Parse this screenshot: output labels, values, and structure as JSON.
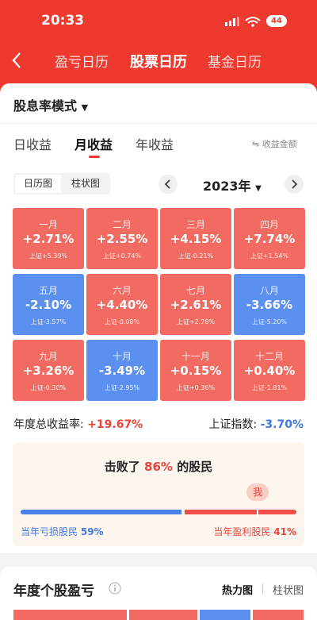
{
  "status": {
    "time": "20:33",
    "battery": "44"
  },
  "nav": {
    "tabs": [
      "盈亏日历",
      "股票日历",
      "基金日历"
    ],
    "active": 1
  },
  "mode": "股息率模式",
  "period": {
    "tabs": [
      "日收益",
      "月收益",
      "年收益"
    ],
    "active": 1,
    "toggle": "收益金额"
  },
  "view": {
    "tabs": [
      "日历图",
      "柱状图"
    ],
    "active": 0
  },
  "year": "2023年",
  "months": [
    {
      "name": "一月",
      "ret": "+2.71%",
      "index": "上证+5.39%"
    },
    {
      "name": "二月",
      "ret": "+2.55%",
      "index": "上证+0.74%"
    },
    {
      "name": "三月",
      "ret": "+4.15%",
      "index": "上证-0.21%"
    },
    {
      "name": "四月",
      "ret": "+7.74%",
      "index": "上证+1.54%"
    },
    {
      "name": "五月",
      "ret": "-2.10%",
      "index": "上证-3.57%"
    },
    {
      "name": "六月",
      "ret": "+4.40%",
      "index": "上证-0.08%"
    },
    {
      "name": "七月",
      "ret": "+2.61%",
      "index": "上证+2.78%"
    },
    {
      "name": "八月",
      "ret": "-3.66%",
      "index": "上证-5.20%"
    },
    {
      "name": "九月",
      "ret": "+3.26%",
      "index": "上证-0.30%"
    },
    {
      "name": "十月",
      "ret": "-3.49%",
      "index": "上证-2.95%"
    },
    {
      "name": "十一月",
      "ret": "+0.15%",
      "index": "上证+0.36%"
    },
    {
      "name": "十二月",
      "ret": "+0.40%",
      "index": "上证-1.81%"
    }
  ],
  "summary": {
    "annual_label": "年度总收益率:",
    "annual_value": "+19.67%",
    "index_label": "上证指数:",
    "index_value": "-3.70%"
  },
  "beat": {
    "prefix": "击败了",
    "pct": "86%",
    "suffix": "的股民",
    "me": "我",
    "loss_label": "当年亏损股民",
    "loss_pct": "59%",
    "profit_label": "当年盈利股民",
    "profit_pct": "41%"
  },
  "section2": {
    "title": "年度个股盈亏",
    "tabs": [
      "热力图",
      "柱状图"
    ],
    "active": 0
  }
}
